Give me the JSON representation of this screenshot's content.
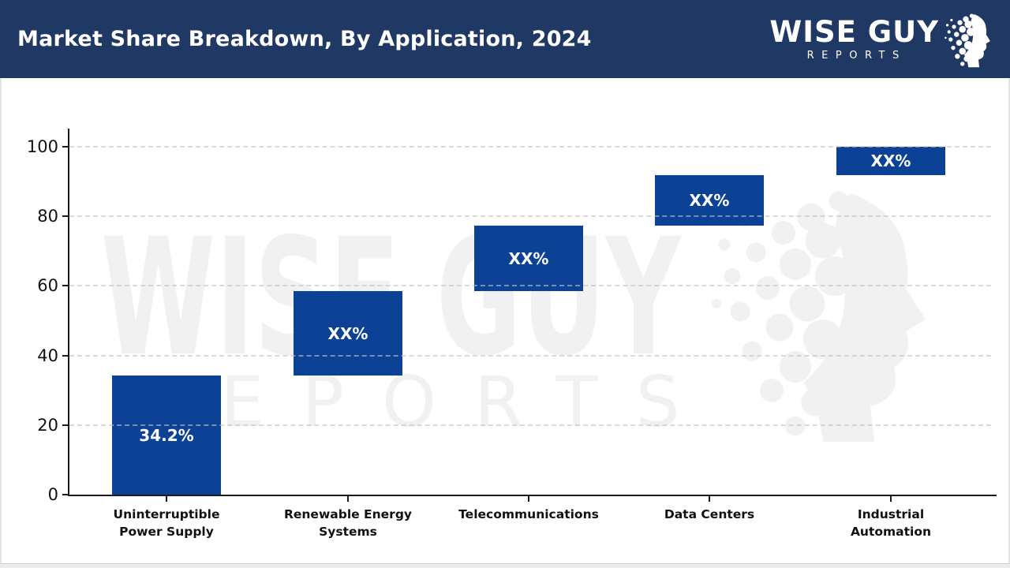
{
  "header": {
    "title": "Market Share Breakdown, By Application, 2024",
    "background_color": "#1f3864",
    "logo": {
      "line1": "WISE GUY",
      "line2": "REPORTS"
    }
  },
  "watermark": {
    "line1": "WISE GUY",
    "line2": "REPORTS",
    "color": "#f1f1f2"
  },
  "chart_data": {
    "type": "bar",
    "variant": "waterfall",
    "title": "Market Share Breakdown, By Application, 2024",
    "categories": [
      "Uninterruptible Power Supply",
      "Renewable Energy Systems",
      "Telecommunications",
      "Data Centers",
      "Industrial Automation"
    ],
    "category_label_lines": [
      [
        "Uninterruptible",
        "Power Supply"
      ],
      [
        "Renewable Energy",
        "Systems"
      ],
      [
        "Telecommunications"
      ],
      [
        "Data Centers"
      ],
      [
        "Industrial",
        "Automation"
      ]
    ],
    "segments": [
      {
        "category": "Uninterruptible Power Supply",
        "start": 0,
        "end": 34.2,
        "label": "34.2%"
      },
      {
        "category": "Renewable Energy Systems",
        "start": 34.2,
        "end": 58.5,
        "label": "XX%"
      },
      {
        "category": "Telecommunications",
        "start": 58.5,
        "end": 77.3,
        "label": "XX%"
      },
      {
        "category": "Data Centers",
        "start": 77.3,
        "end": 91.8,
        "label": "XX%"
      },
      {
        "category": "Industrial Automation",
        "start": 91.8,
        "end": 100,
        "label": "XX%"
      }
    ],
    "yticks": [
      0,
      20,
      40,
      60,
      80,
      100
    ],
    "ylim": [
      0,
      100
    ],
    "xlabel": "",
    "ylabel": "",
    "grid": "horizontal dashed",
    "legend": "none",
    "bar_color": "#0c4296",
    "value_label_color": "#ffffff",
    "axis_color": "#1a1a1a"
  }
}
